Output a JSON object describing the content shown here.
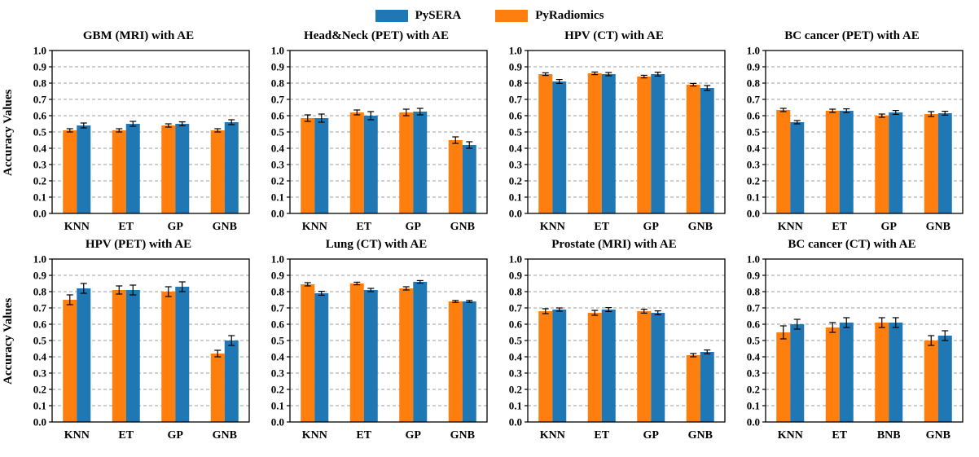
{
  "legend": {
    "items": [
      {
        "label": "PySERA",
        "color": "#1f77b4"
      },
      {
        "label": "PyRadiomics",
        "color": "#ff7f0e"
      }
    ]
  },
  "axes": {
    "ylabel": "Accuracy Values",
    "y_ticks": [
      "1.0",
      "0.9",
      "0.8",
      "0.7",
      "0.6",
      "0.5",
      "0.4",
      "0.3",
      "0.2",
      "0.1",
      "0.0"
    ],
    "ylim": [
      0,
      1
    ],
    "grid": "dashed-horizontal"
  },
  "chart_data": [
    {
      "type": "bar",
      "title": "GBM (MRI) with AE",
      "categories": [
        "KNN",
        "ET",
        "GP",
        "GNB"
      ],
      "ylim": [
        0,
        1
      ],
      "series": [
        {
          "name": "PyRadiomics",
          "color": "#ff7f0e",
          "values": [
            0.51,
            0.51,
            0.54,
            0.51
          ],
          "errors": [
            0.01,
            0.01,
            0.01,
            0.01
          ]
        },
        {
          "name": "PySERA",
          "color": "#1f77b4",
          "values": [
            0.54,
            0.55,
            0.55,
            0.56
          ],
          "errors": [
            0.015,
            0.015,
            0.012,
            0.015
          ]
        }
      ]
    },
    {
      "type": "bar",
      "title": "Head&Neck (PET) with AE",
      "categories": [
        "KNN",
        "ET",
        "GP",
        "GNB"
      ],
      "ylim": [
        0,
        1
      ],
      "series": [
        {
          "name": "PyRadiomics",
          "color": "#ff7f0e",
          "values": [
            0.585,
            0.62,
            0.62,
            0.45
          ],
          "errors": [
            0.02,
            0.015,
            0.02,
            0.02
          ]
        },
        {
          "name": "PySERA",
          "color": "#1f77b4",
          "values": [
            0.585,
            0.6,
            0.625,
            0.42
          ],
          "errors": [
            0.025,
            0.025,
            0.02,
            0.02
          ]
        }
      ]
    },
    {
      "type": "bar",
      "title": "HPV (CT) with AE",
      "categories": [
        "KNN",
        "ET",
        "GP",
        "GNB"
      ],
      "ylim": [
        0,
        1
      ],
      "series": [
        {
          "name": "PyRadiomics",
          "color": "#ff7f0e",
          "values": [
            0.855,
            0.86,
            0.84,
            0.79
          ],
          "errors": [
            0.008,
            0.008,
            0.008,
            0.008
          ]
        },
        {
          "name": "PySERA",
          "color": "#1f77b4",
          "values": [
            0.81,
            0.855,
            0.855,
            0.77
          ],
          "errors": [
            0.012,
            0.01,
            0.012,
            0.015
          ]
        }
      ]
    },
    {
      "type": "bar",
      "title": "BC cancer (PET) with AE",
      "categories": [
        "KNN",
        "ET",
        "GP",
        "GNB"
      ],
      "ylim": [
        0,
        1
      ],
      "series": [
        {
          "name": "PyRadiomics",
          "color": "#ff7f0e",
          "values": [
            0.635,
            0.63,
            0.6,
            0.61
          ],
          "errors": [
            0.01,
            0.01,
            0.01,
            0.015
          ]
        },
        {
          "name": "PySERA",
          "color": "#1f77b4",
          "values": [
            0.56,
            0.63,
            0.62,
            0.615
          ],
          "errors": [
            0.01,
            0.012,
            0.012,
            0.012
          ]
        }
      ]
    },
    {
      "type": "bar",
      "title": "HPV (PET) with AE",
      "categories": [
        "KNN",
        "ET",
        "GP",
        "GNB"
      ],
      "ylim": [
        0,
        1
      ],
      "series": [
        {
          "name": "PyRadiomics",
          "color": "#ff7f0e",
          "values": [
            0.75,
            0.81,
            0.8,
            0.42
          ],
          "errors": [
            0.03,
            0.025,
            0.03,
            0.02
          ]
        },
        {
          "name": "PySERA",
          "color": "#1f77b4",
          "values": [
            0.82,
            0.81,
            0.83,
            0.5
          ],
          "errors": [
            0.03,
            0.03,
            0.03,
            0.03
          ]
        }
      ]
    },
    {
      "type": "bar",
      "title": "Lung (CT) with AE",
      "categories": [
        "KNN",
        "ET",
        "GP",
        "GNB"
      ],
      "ylim": [
        0,
        1
      ],
      "series": [
        {
          "name": "PyRadiomics",
          "color": "#ff7f0e",
          "values": [
            0.845,
            0.85,
            0.82,
            0.74
          ],
          "errors": [
            0.01,
            0.008,
            0.01,
            0.006
          ]
        },
        {
          "name": "PySERA",
          "color": "#1f77b4",
          "values": [
            0.79,
            0.81,
            0.86,
            0.74
          ],
          "errors": [
            0.012,
            0.01,
            0.008,
            0.006
          ]
        }
      ]
    },
    {
      "type": "bar",
      "title": "Prostate (MRI) with AE",
      "categories": [
        "KNN",
        "ET",
        "GP",
        "GNB"
      ],
      "ylim": [
        0,
        1
      ],
      "series": [
        {
          "name": "PyRadiomics",
          "color": "#ff7f0e",
          "values": [
            0.68,
            0.67,
            0.68,
            0.41
          ],
          "errors": [
            0.015,
            0.015,
            0.012,
            0.01
          ]
        },
        {
          "name": "PySERA",
          "color": "#1f77b4",
          "values": [
            0.69,
            0.69,
            0.67,
            0.43
          ],
          "errors": [
            0.01,
            0.012,
            0.012,
            0.012
          ]
        }
      ]
    },
    {
      "type": "bar",
      "title": "BC cancer (CT) with AE",
      "categories": [
        "KNN",
        "ET",
        "BNB",
        "GNB"
      ],
      "ylim": [
        0,
        1
      ],
      "series": [
        {
          "name": "PyRadiomics",
          "color": "#ff7f0e",
          "values": [
            0.55,
            0.58,
            0.61,
            0.5
          ],
          "errors": [
            0.04,
            0.03,
            0.03,
            0.03
          ]
        },
        {
          "name": "PySERA",
          "color": "#1f77b4",
          "values": [
            0.6,
            0.61,
            0.61,
            0.53
          ],
          "errors": [
            0.03,
            0.03,
            0.03,
            0.03
          ]
        }
      ]
    }
  ]
}
